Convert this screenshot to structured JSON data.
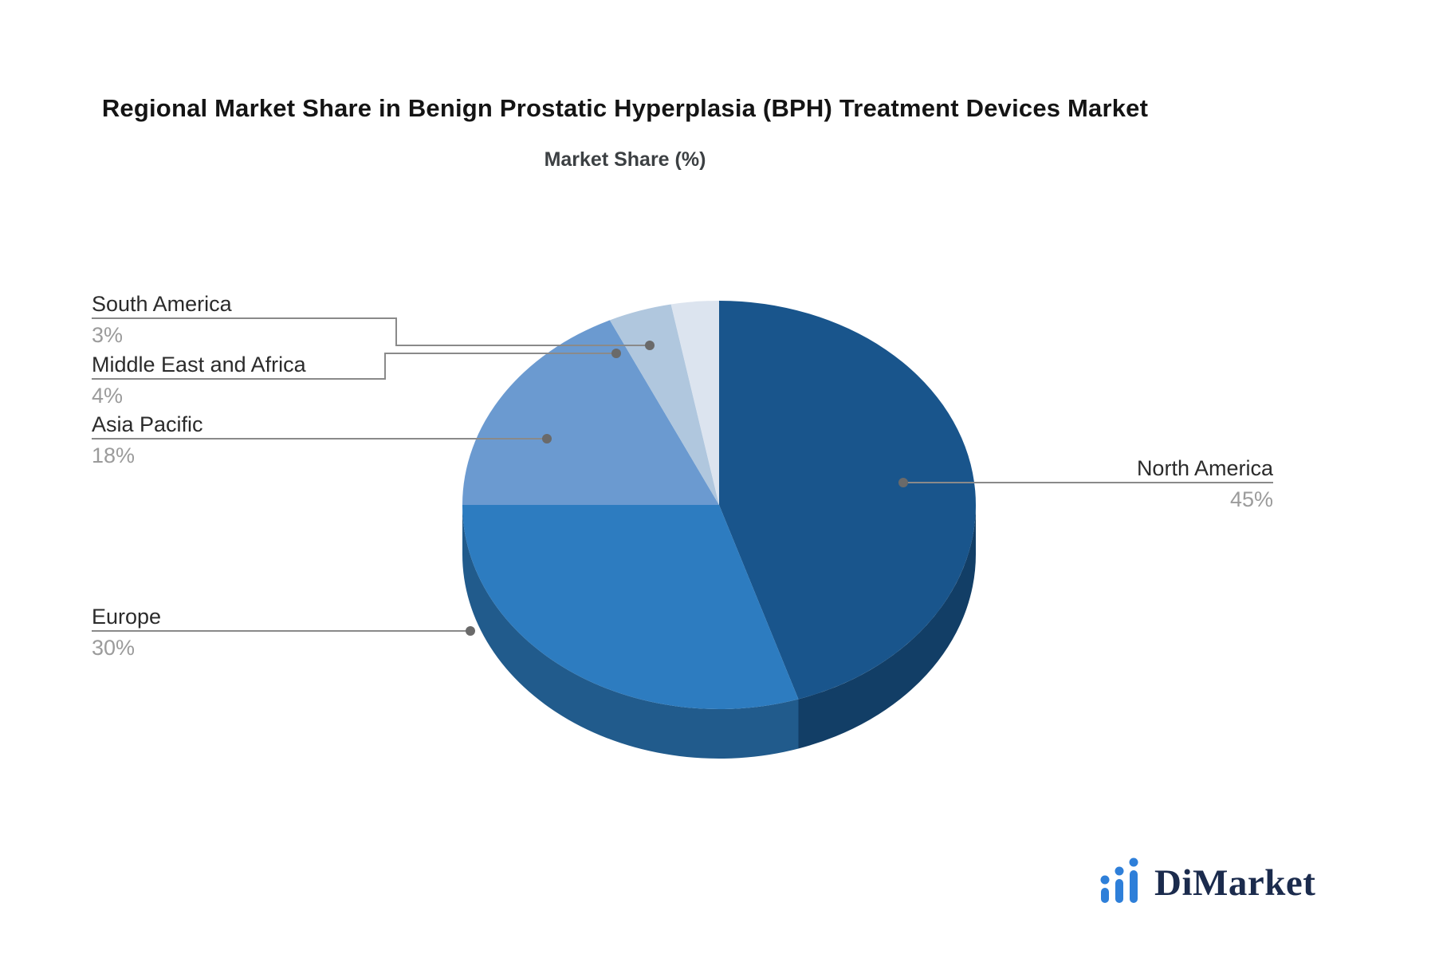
{
  "title": "Regional Market Share in Benign Prostatic Hyperplasia (BPH) Treatment Devices Market",
  "subtitle": "Market Share (%)",
  "chart_data": {
    "type": "pie",
    "style": "pie-3d",
    "title": "Regional Market Share in Benign Prostatic Hyperplasia (BPH) Treatment Devices Market",
    "subtitle": "Market Share (%)",
    "unit": "%",
    "direction": "clockwise",
    "start_angle_deg": 0,
    "legend": "none",
    "labels": "leader-line-callouts",
    "slices": [
      {
        "label": "North America",
        "value": 45,
        "pct": "45%",
        "color": "#19558C"
      },
      {
        "label": "Europe",
        "value": 30,
        "pct": "30%",
        "color": "#2D7CC0"
      },
      {
        "label": "Asia Pacific",
        "value": 18,
        "pct": "18%",
        "color": "#6B9AD0"
      },
      {
        "label": "Middle East and Africa",
        "value": 4,
        "pct": "4%",
        "color": "#B0C7DE"
      },
      {
        "label": "South America",
        "value": 3,
        "pct": "3%",
        "color": "#DCE4EF"
      }
    ],
    "colors": {
      "leader_line": "#8a8a8a",
      "leader_dot": "#6a6a6a",
      "label_text": "#2b2b2b",
      "pct_text": "#9b9b9b"
    }
  },
  "logo": {
    "text": "DiMarket",
    "icon": "bar-chart-icon",
    "icon_color": "#2e7fd9",
    "text_color": "#1b2b4d"
  }
}
